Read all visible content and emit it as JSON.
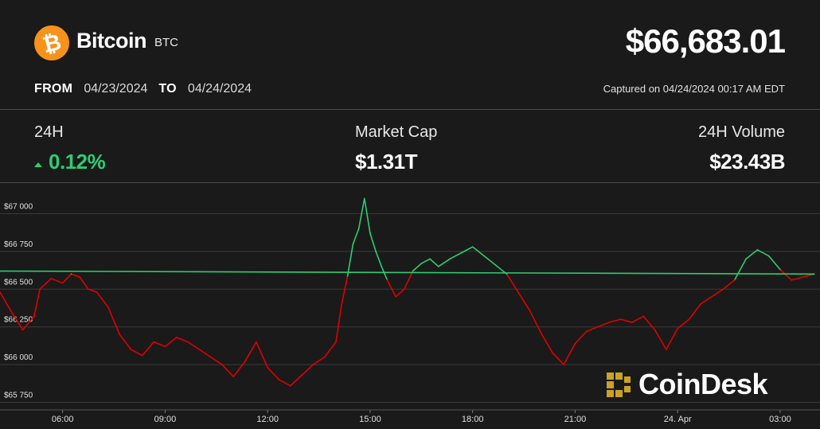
{
  "coin": {
    "logo_glyph": "₿",
    "name": "Bitcoin",
    "symbol": "BTC",
    "brand_color": "#f7931a"
  },
  "price": "$66,683.01",
  "range": {
    "from_label": "FROM",
    "from_date": "04/23/2024",
    "to_label": "TO",
    "to_date": "04/24/2024"
  },
  "captured": "Captured on 04/24/2024 00:17 AM EDT",
  "stats": {
    "change_label": "24H",
    "change_value": "0.12%",
    "market_cap_label": "Market Cap",
    "market_cap_value": "$1.31T",
    "volume_label": "24H Volume",
    "volume_value": "$23.43B"
  },
  "watermark": "CoinDesk",
  "colors": {
    "background": "#1a1a1a",
    "up": "#2ecc71",
    "down": "#e00000",
    "gridline": "#3a3a3a",
    "watermark_gold": "#c9a227"
  },
  "chart_data": {
    "type": "line",
    "title": "",
    "xlabel": "",
    "ylabel": "",
    "x_ticks": [
      "06:00",
      "09:00",
      "12:00",
      "15:00",
      "18:00",
      "21:00",
      "24. Apr",
      "03:00"
    ],
    "y_ticks": [
      "$65 750",
      "$66 000",
      "$66 250",
      "$66 500",
      "$66 750",
      "$67 000"
    ],
    "ylim": [
      65700,
      67150
    ],
    "xlim": [
      "2024-04-23 04:10",
      "2024-04-24 04:10"
    ],
    "baseline": 66600,
    "line_color_rule": "green above baseline, red below",
    "grid": true,
    "series": [
      {
        "x": [
          "04:10",
          "04:30",
          "04:50",
          "05:10",
          "05:20",
          "05:40",
          "06:00",
          "06:15",
          "06:30",
          "06:45",
          "07:00",
          "07:20",
          "07:40",
          "08:00",
          "08:20",
          "08:40",
          "09:00",
          "09:20",
          "09:40",
          "10:00",
          "10:20",
          "10:40",
          "11:00",
          "11:20",
          "11:40",
          "12:00",
          "12:20",
          "12:40",
          "13:00",
          "13:20",
          "13:40",
          "14:00",
          "14:10",
          "14:20",
          "14:30",
          "14:40",
          "14:50",
          "15:00",
          "15:10",
          "15:20",
          "15:30",
          "15:45",
          "16:00",
          "16:15",
          "16:30",
          "16:45",
          "17:00",
          "17:20",
          "17:40",
          "18:00",
          "18:20",
          "18:40",
          "19:00",
          "19:20",
          "19:40",
          "20:00",
          "20:20",
          "20:40",
          "21:00",
          "21:20",
          "21:40",
          "22:00",
          "22:20",
          "22:40",
          "23:00",
          "23:20",
          "23:40",
          "00:00",
          "00:20",
          "00:40",
          "01:00",
          "01:20",
          "01:40",
          "02:00",
          "02:20",
          "02:40",
          "03:00",
          "03:20",
          "03:40",
          "04:00",
          "04:10"
        ],
        "y": [
          66480,
          66350,
          66230,
          66320,
          66500,
          66570,
          66540,
          66600,
          66580,
          66500,
          66480,
          66380,
          66200,
          66100,
          66060,
          66150,
          66120,
          66180,
          66150,
          66100,
          66050,
          66000,
          65920,
          66020,
          66150,
          65980,
          65900,
          65860,
          65930,
          66000,
          66050,
          66150,
          66400,
          66580,
          66800,
          66900,
          67100,
          66870,
          66750,
          66650,
          66560,
          66450,
          66500,
          66620,
          66670,
          66700,
          66650,
          66700,
          66740,
          66780,
          66720,
          66660,
          66600,
          66480,
          66360,
          66210,
          66080,
          66000,
          66140,
          66220,
          66250,
          66280,
          66300,
          66280,
          66320,
          66230,
          66100,
          66240,
          66300,
          66400,
          66450,
          66500,
          66560,
          66700,
          66760,
          66720,
          66630,
          66560,
          66580,
          66600,
          66620
        ]
      }
    ]
  }
}
